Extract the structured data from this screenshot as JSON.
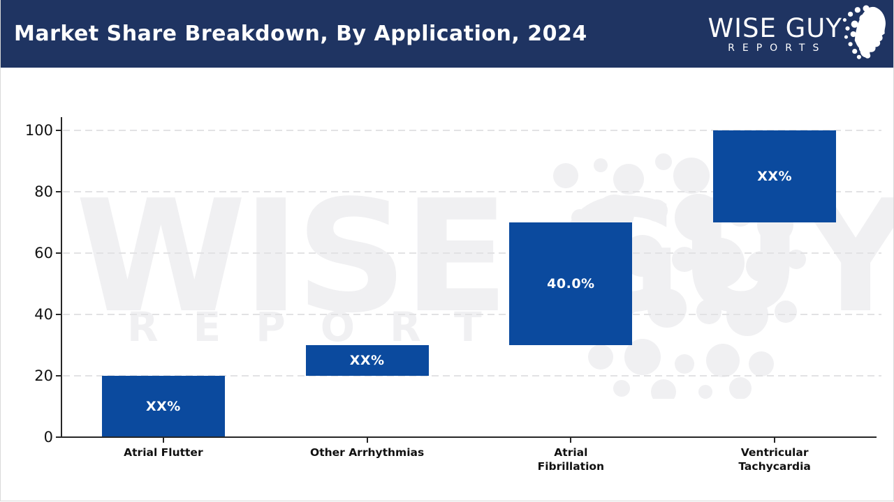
{
  "header": {
    "title": "Market Share Breakdown, By Application, 2024",
    "bg_color": "#1f3462",
    "logo": {
      "line1": "WISE GUY",
      "line2": "REPORTS"
    }
  },
  "watermark": {
    "line1": "WISE GUY",
    "line2": "REPORTS"
  },
  "chart_data": {
    "type": "bar",
    "subtype": "waterfall",
    "title": "Market Share Breakdown, By Application, 2024",
    "xlabel": "",
    "ylabel": "",
    "ylim": [
      0,
      100
    ],
    "yticks": [
      0,
      20,
      40,
      60,
      80,
      100
    ],
    "grid": "horizontal-dashed",
    "bar_color": "#0b4a9e",
    "bar_label_color": "#ffffff",
    "categories": [
      "Atrial Flutter",
      "Other Arrhythmias",
      "Atrial Fibrillation",
      "Ventricular Tachycardia"
    ],
    "category_label_lines": [
      [
        "Atrial Flutter"
      ],
      [
        "Other Arrhythmias"
      ],
      [
        "Atrial",
        "Fibrillation"
      ],
      [
        "Ventricular",
        "Tachycardia"
      ]
    ],
    "series": [
      {
        "name": "Market Share",
        "segments": [
          {
            "category": "Atrial Flutter",
            "start": 0,
            "end": 20,
            "value_label": "XX%"
          },
          {
            "category": "Other Arrhythmias",
            "start": 20,
            "end": 30,
            "value_label": "XX%"
          },
          {
            "category": "Atrial Fibrillation",
            "start": 30,
            "end": 70,
            "value_label": "40.0%"
          },
          {
            "category": "Ventricular Tachycardia",
            "start": 70,
            "end": 100,
            "value_label": "XX%"
          }
        ]
      }
    ]
  }
}
